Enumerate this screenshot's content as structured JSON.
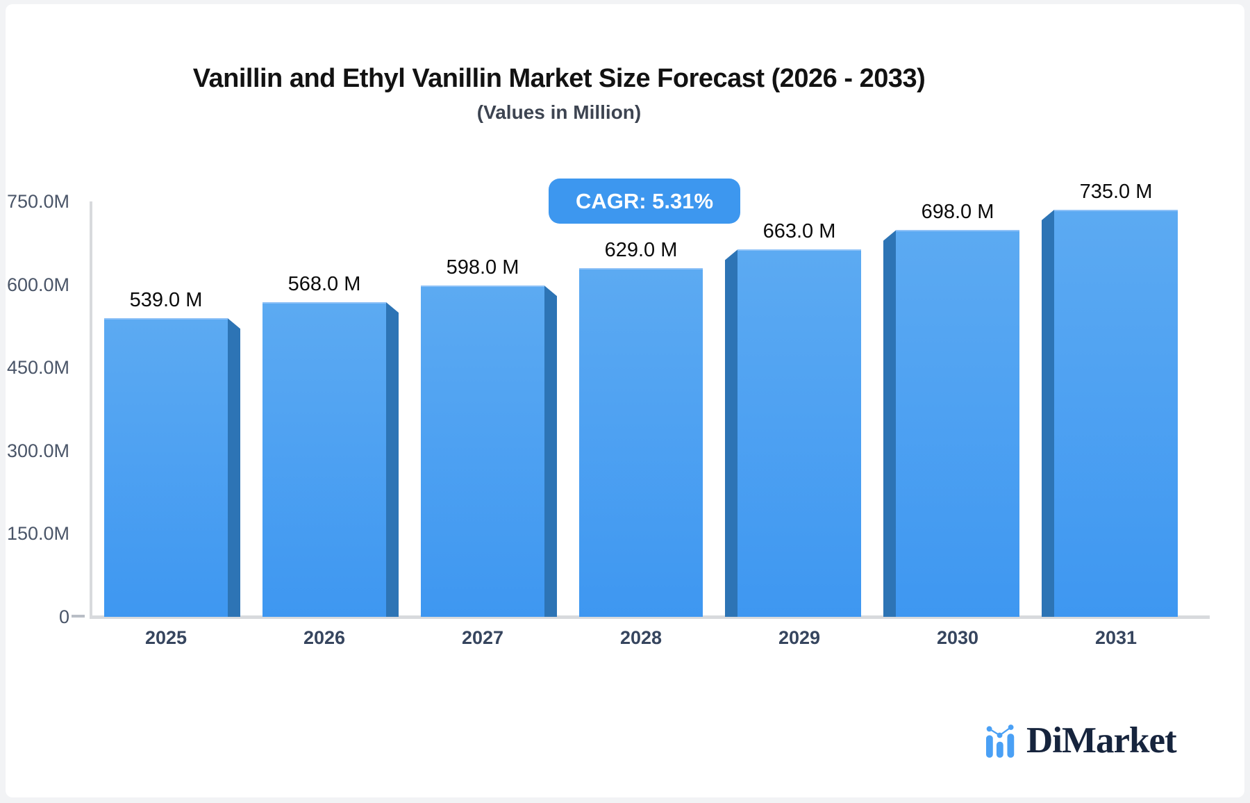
{
  "title": "Vanillin and Ethyl Vanillin Market Size Forecast (2026 - 2033)",
  "subtitle": "(Values in Million)",
  "badge": {
    "label": "CAGR: 5.31%"
  },
  "chart_data": {
    "type": "bar",
    "categories": [
      "2025",
      "2026",
      "2027",
      "2028",
      "2029",
      "2030",
      "2031"
    ],
    "values": [
      539,
      568,
      598,
      629,
      663,
      698,
      735
    ],
    "value_labels": [
      "539.0 M",
      "568.0 M",
      "598.0 M",
      "629.0 M",
      "663.0 M",
      "698.0 M",
      "735.0 M"
    ],
    "title": "Vanillin and Ethyl Vanillin Market Size Forecast (2026 - 2033)",
    "subtitle": "(Values in Million)",
    "annotation": "CAGR: 5.31%",
    "xlabel": "",
    "ylabel": "",
    "ylim": [
      0,
      750
    ],
    "y_ticks": [
      {
        "value": 750,
        "label": "750.0M"
      },
      {
        "value": 600,
        "label": "600.0M"
      },
      {
        "value": 450,
        "label": "450.0M"
      },
      {
        "value": 300,
        "label": "300.0M"
      },
      {
        "value": 150,
        "label": "150.0M"
      },
      {
        "value": 0,
        "label": "0"
      }
    ],
    "grid": false,
    "legend_position": "none",
    "bar_style": "3d-perspective"
  },
  "branding": {
    "name": "DiMarket"
  },
  "colors": {
    "accent": "#3d97ef",
    "bar_top": "#5caaf2",
    "bar_bottom": "#3e97f1",
    "bar_side": "#2d74b5",
    "axis": "#d8dadd",
    "title": "#121212",
    "subtitle": "#3d4451",
    "tick_label": "#4a5568",
    "category_label": "#36455e",
    "value_label": "#0b0b0b",
    "badge_bg": "#3d97ef",
    "badge_text": "#ffffff",
    "logo_blue": "#4aa0f5",
    "logo_text": "#16243d",
    "background": "#f2f3f5",
    "card": "#ffffff"
  }
}
